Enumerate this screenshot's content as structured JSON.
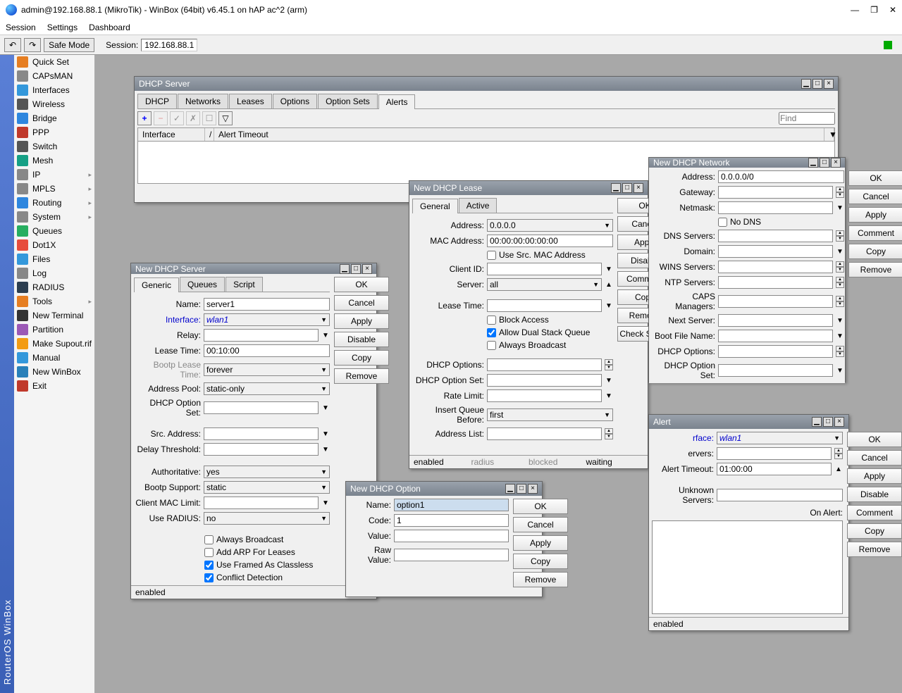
{
  "app": {
    "title": "admin@192.168.88.1 (MikroTik) - WinBox (64bit) v6.45.1 on hAP ac^2 (arm)",
    "menu": [
      "Session",
      "Settings",
      "Dashboard"
    ],
    "safe_mode": "Safe Mode",
    "session_label": "Session:",
    "session_value": "192.168.88.1",
    "sidebar_brand": "RouterOS WinBox"
  },
  "sidebar": [
    {
      "label": "Quick Set",
      "color": "#e67e22"
    },
    {
      "label": "CAPsMAN",
      "color": "#888"
    },
    {
      "label": "Interfaces",
      "color": "#3498db"
    },
    {
      "label": "Wireless",
      "color": "#555"
    },
    {
      "label": "Bridge",
      "color": "#2e86de"
    },
    {
      "label": "PPP",
      "color": "#c0392b"
    },
    {
      "label": "Switch",
      "color": "#555"
    },
    {
      "label": "Mesh",
      "color": "#16a085"
    },
    {
      "label": "IP",
      "color": "#888",
      "sub": true
    },
    {
      "label": "MPLS",
      "color": "#888",
      "sub": true
    },
    {
      "label": "Routing",
      "color": "#2e86de",
      "sub": true
    },
    {
      "label": "System",
      "color": "#888",
      "sub": true
    },
    {
      "label": "Queues",
      "color": "#27ae60"
    },
    {
      "label": "Dot1X",
      "color": "#e74c3c"
    },
    {
      "label": "Files",
      "color": "#3498db"
    },
    {
      "label": "Log",
      "color": "#888"
    },
    {
      "label": "RADIUS",
      "color": "#2c3e50"
    },
    {
      "label": "Tools",
      "color": "#e67e22",
      "sub": true
    },
    {
      "label": "New Terminal",
      "color": "#333"
    },
    {
      "label": "Partition",
      "color": "#9b59b6"
    },
    {
      "label": "Make Supout.rif",
      "color": "#f39c12"
    },
    {
      "label": "Manual",
      "color": "#3498db"
    },
    {
      "label": "New WinBox",
      "color": "#2980b9"
    },
    {
      "label": "Exit",
      "color": "#c0392b"
    }
  ],
  "dhcp_server_win": {
    "title": "DHCP Server",
    "tabs": [
      "DHCP",
      "Networks",
      "Leases",
      "Options",
      "Option Sets",
      "Alerts"
    ],
    "active_tab": 5,
    "find": "Find",
    "cols": [
      "Interface",
      "Alert Timeout"
    ]
  },
  "new_server": {
    "title": "New DHCP Server",
    "tabs": [
      "Generic",
      "Queues",
      "Script"
    ],
    "fields": {
      "name_l": "Name:",
      "name_v": "server1",
      "iface_l": "Interface:",
      "iface_v": "wlan1",
      "relay_l": "Relay:",
      "lease_l": "Lease Time:",
      "lease_v": "00:10:00",
      "bootp_l": "Bootp Lease Time:",
      "bootp_v": "forever",
      "pool_l": "Address Pool:",
      "pool_v": "static-only",
      "optset_l": "DHCP Option Set:",
      "src_l": "Src. Address:",
      "delay_l": "Delay Threshold:",
      "auth_l": "Authoritative:",
      "auth_v": "yes",
      "bootps_l": "Bootp Support:",
      "bootps_v": "static",
      "maclim_l": "Client MAC Limit:",
      "radius_l": "Use RADIUS:",
      "radius_v": "no"
    },
    "checks": {
      "broadcast": "Always Broadcast",
      "arp": "Add ARP For Leases",
      "framed": "Use Framed As Classless",
      "conflict": "Conflict Detection"
    },
    "buttons": [
      "OK",
      "Cancel",
      "Apply",
      "Disable",
      "Copy",
      "Remove"
    ],
    "status": "enabled"
  },
  "new_lease": {
    "title": "New DHCP Lease",
    "tabs": [
      "General",
      "Active"
    ],
    "fields": {
      "addr_l": "Address:",
      "addr_v": "0.0.0.0",
      "mac_l": "MAC Address:",
      "mac_v": "00:00:00:00:00:00",
      "srcmac": "Use Src. MAC Address",
      "cid_l": "Client ID:",
      "srv_l": "Server:",
      "srv_v": "all",
      "ltime_l": "Lease Time:",
      "block": "Block Access",
      "dual": "Allow Dual Stack Queue",
      "bcast": "Always Broadcast",
      "dopt_l": "DHCP Options:",
      "doptset_l": "DHCP Option Set:",
      "rate_l": "Rate Limit:",
      "queue_l": "Insert Queue Before:",
      "queue_v": "first",
      "alist_l": "Address List:"
    },
    "buttons": [
      "OK",
      "Cancel",
      "Apply",
      "Disable",
      "Comment",
      "Copy",
      "Remove",
      "Check Status"
    ],
    "status": [
      "enabled",
      "radius",
      "blocked",
      "waiting"
    ]
  },
  "new_network": {
    "title": "New DHCP Network",
    "fields": {
      "addr_l": "Address:",
      "addr_v": "0.0.0.0/0",
      "gw_l": "Gateway:",
      "mask_l": "Netmask:",
      "nodns": "No DNS",
      "dns_l": "DNS Servers:",
      "dom_l": "Domain:",
      "wins_l": "WINS Servers:",
      "ntp_l": "NTP Servers:",
      "caps_l": "CAPS Managers:",
      "next_l": "Next Server:",
      "bootf_l": "Boot File Name:",
      "dopt_l": "DHCP Options:",
      "doptset_l": "DHCP Option Set:"
    },
    "buttons": [
      "OK",
      "Cancel",
      "Apply",
      "Comment",
      "Copy",
      "Remove"
    ]
  },
  "new_option": {
    "title": "New DHCP Option",
    "fields": {
      "name_l": "Name:",
      "name_v": "option1",
      "code_l": "Code:",
      "code_v": "1",
      "val_l": "Value:",
      "raw_l": "Raw Value:"
    },
    "buttons": [
      "OK",
      "Cancel",
      "Apply",
      "Copy",
      "Remove"
    ]
  },
  "new_alert": {
    "title": "New DHCP Alert",
    "title_visible": "Alert",
    "fields": {
      "iface_l": "rface:",
      "iface_v": "wlan1",
      "srv_l": "ervers:",
      "timeout_l": "Alert Timeout:",
      "timeout_v": "01:00:00",
      "unk_l": "Unknown Servers:",
      "onalert_l": "On Alert:"
    },
    "buttons": [
      "OK",
      "Cancel",
      "Apply",
      "Disable",
      "Comment",
      "Copy",
      "Remove"
    ],
    "status": "enabled"
  }
}
